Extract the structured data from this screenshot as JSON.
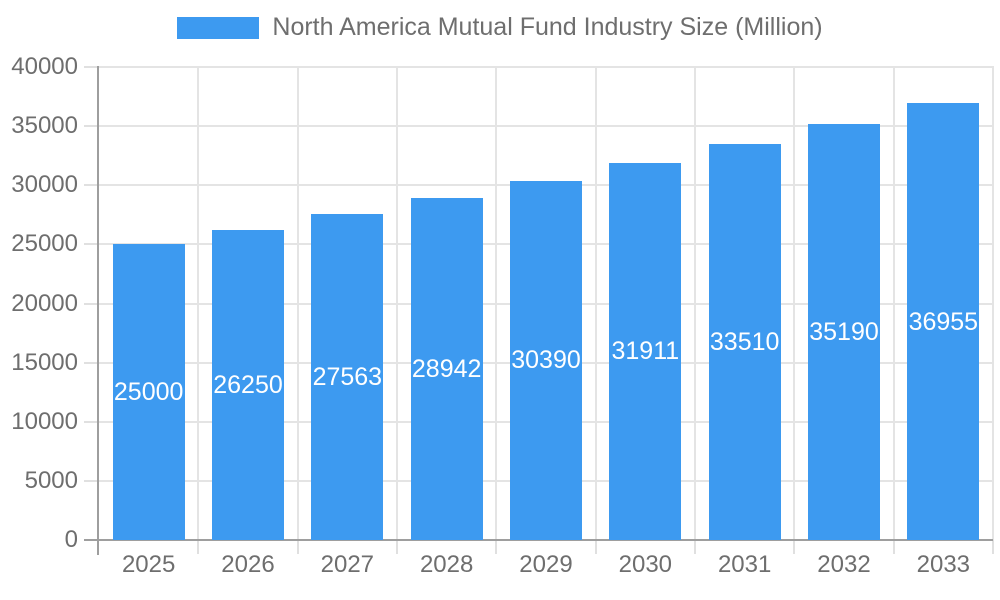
{
  "chart_data": {
    "type": "bar",
    "title": "North America Mutual Fund Industry Size (Million)",
    "legend_position": "top",
    "grid": true,
    "categories": [
      "2025",
      "2026",
      "2027",
      "2028",
      "2029",
      "2030",
      "2031",
      "2032",
      "2033"
    ],
    "values": [
      25000,
      26250,
      27563,
      28942,
      30390,
      31911,
      33510,
      35190,
      36955
    ],
    "series": [
      {
        "name": "North America Mutual Fund Industry Size (Million)",
        "values": [
          25000,
          26250,
          27563,
          28942,
          30390,
          31911,
          33510,
          35190,
          36955
        ]
      }
    ],
    "xlabel": "",
    "ylabel": "",
    "ylim": [
      0,
      40000
    ],
    "ytick_step": 5000,
    "yticks": [
      0,
      5000,
      10000,
      15000,
      20000,
      25000,
      30000,
      35000,
      40000
    ],
    "bar_value_labels_inside": true,
    "colors": {
      "bar": "#3D9AF0",
      "bar_label": "#FFFFFF",
      "axis_text": "#6E6E6E",
      "grid_line": "#E4E4E4",
      "tick_mark": "#E0E0E0",
      "axis_line": "#9E9E9E",
      "background": "#FFFFFF"
    }
  }
}
